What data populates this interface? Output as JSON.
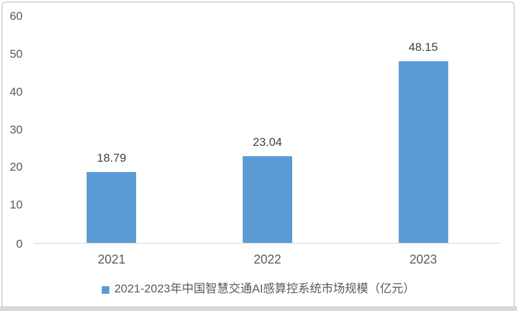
{
  "chart_data": {
    "type": "bar",
    "title": "",
    "categories": [
      "2021",
      "2022",
      "2023"
    ],
    "values": [
      18.79,
      23.04,
      48.15
    ],
    "value_labels": [
      "18.79",
      "23.04",
      "48.15"
    ],
    "legend": [
      "2021-2023年中国智慧交通AI感算控系统市场规模（亿元）"
    ],
    "legend_position": "bottom",
    "xlabel": "",
    "ylabel": "",
    "ylim": [
      0,
      60
    ],
    "yticks": [
      0,
      10,
      20,
      30,
      40,
      50,
      60
    ],
    "grid": false,
    "colors": {
      "bar": "#5B9BD5",
      "axis_line": "#D9D9D9",
      "tick_label": "#595959",
      "value_label": "#404040",
      "border": "#D9D9D9"
    }
  }
}
